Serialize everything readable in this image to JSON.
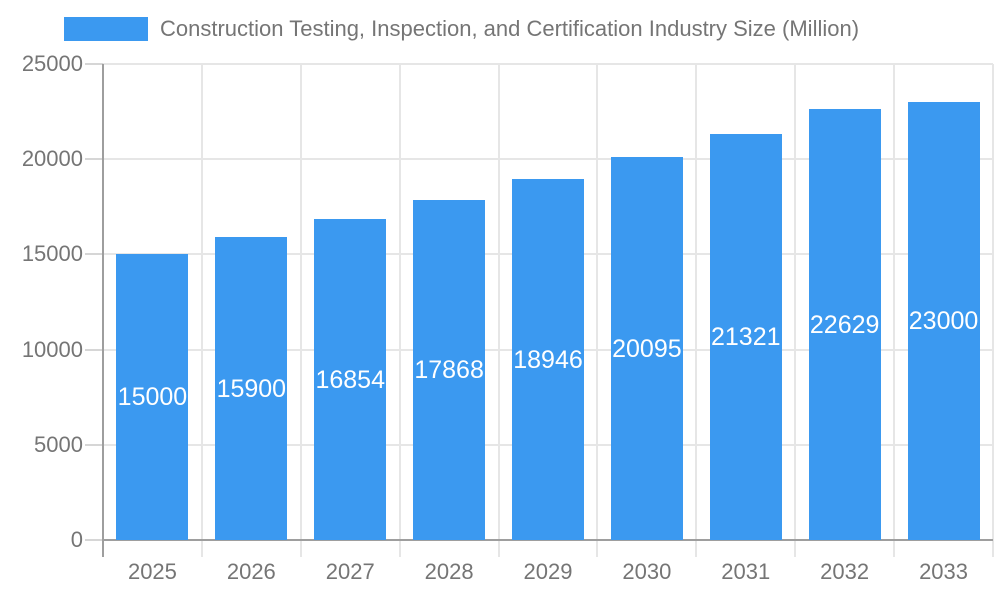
{
  "colors": {
    "bar": "#3B99F0",
    "title_text": "#757575",
    "axis_text": "#757575",
    "value_text": "#FFFFFF",
    "gridline": "#E6E6E6",
    "tick": "#D6D6D6",
    "axis_line": "#9E9E9E",
    "background": "#FFFFFF"
  },
  "chart_data": {
    "type": "bar",
    "title": "Construction Testing, Inspection, and Certification Industry Size (Million)",
    "series_name": "Construction Testing, Inspection, and Certification Industry Size (Million)",
    "categories": [
      "2025",
      "2026",
      "2027",
      "2028",
      "2029",
      "2030",
      "2031",
      "2032",
      "2033"
    ],
    "values": [
      15000,
      15900,
      16854,
      17868,
      18946,
      20095,
      21321,
      22629,
      23000
    ],
    "xlabel": "",
    "ylabel": "",
    "ylim": [
      0,
      25000
    ],
    "yticks": [
      0,
      5000,
      10000,
      15000,
      20000,
      25000
    ],
    "grid": true,
    "legend_position": "top-left",
    "value_label_position": "inside-center",
    "bar_label_color": "#FFFFFF"
  }
}
